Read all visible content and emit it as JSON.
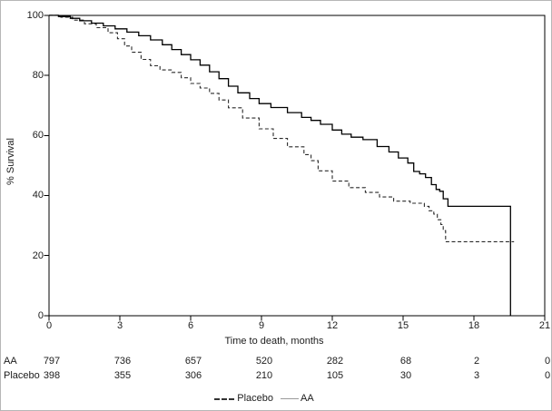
{
  "axes": {
    "x_title": "Time to death, months",
    "y_title": "% Survival"
  },
  "legend": {
    "items": [
      {
        "label": "Placebo",
        "marker": "dashed-line"
      },
      {
        "label": "AA",
        "marker": "solid-line"
      }
    ]
  },
  "colors": {
    "curve_aa": "#000000",
    "curve_placebo": "#2a2a2a",
    "frame": "#000000",
    "text": "#1c1c1c",
    "legend_aa_marker": "#9a9a9a"
  },
  "chart_data": {
    "type": "line",
    "subtype": "kaplan-meier-step",
    "title": "",
    "xlabel": "Time to death, months",
    "ylabel": "% Survival",
    "xlim": [
      0,
      21
    ],
    "ylim": [
      0,
      100
    ],
    "x_ticks": [
      0,
      3,
      6,
      9,
      12,
      15,
      18,
      21
    ],
    "y_ticks": [
      0,
      20,
      40,
      60,
      80,
      100
    ],
    "grid": false,
    "legend_position": "bottom-center",
    "series": [
      {
        "name": "Placebo",
        "style": "dashed",
        "points": [
          [
            0,
            100
          ],
          [
            0.5,
            99.4
          ],
          [
            1,
            98.4
          ],
          [
            1.5,
            97.2
          ],
          [
            2,
            95.9
          ],
          [
            2.5,
            94.2
          ],
          [
            2.9,
            92.2
          ],
          [
            3.2,
            89.8
          ],
          [
            3.5,
            87.7
          ],
          [
            3.9,
            85.3
          ],
          [
            4.3,
            83.2
          ],
          [
            4.7,
            81.8
          ],
          [
            5.2,
            81
          ],
          [
            5.6,
            79.2
          ],
          [
            6,
            77.3
          ],
          [
            6.4,
            75.8
          ],
          [
            6.8,
            74
          ],
          [
            7.2,
            71.8
          ],
          [
            7.6,
            69.2
          ],
          [
            8.2,
            65.8
          ],
          [
            8.9,
            62.2
          ],
          [
            9.5,
            59
          ],
          [
            10.1,
            56.2
          ],
          [
            10.8,
            53.6
          ],
          [
            11.1,
            51.6
          ],
          [
            11.4,
            48.2
          ],
          [
            12,
            44.8
          ],
          [
            12.7,
            42.6
          ],
          [
            13.4,
            41
          ],
          [
            14,
            39.5
          ],
          [
            14.6,
            38.1
          ],
          [
            15.3,
            37.4
          ],
          [
            15.9,
            36.4
          ],
          [
            16.1,
            34.9
          ],
          [
            16.3,
            33.8
          ],
          [
            16.45,
            31.9
          ],
          [
            16.6,
            30.3
          ],
          [
            16.7,
            28.3
          ],
          [
            16.8,
            24.6
          ],
          [
            19.7,
            24.6
          ]
        ]
      },
      {
        "name": "AA",
        "style": "solid",
        "points": [
          [
            0,
            100
          ],
          [
            0.4,
            99.6
          ],
          [
            0.9,
            99
          ],
          [
            1.3,
            98.2
          ],
          [
            1.8,
            97.4
          ],
          [
            2.3,
            96.5
          ],
          [
            2.8,
            95.5
          ],
          [
            3.3,
            94.4
          ],
          [
            3.8,
            93.2
          ],
          [
            4.3,
            91.8
          ],
          [
            4.8,
            90.2
          ],
          [
            5.2,
            88.6
          ],
          [
            5.6,
            86.9
          ],
          [
            6,
            85.2
          ],
          [
            6.4,
            83.4
          ],
          [
            6.8,
            81.2
          ],
          [
            7.2,
            78.9
          ],
          [
            7.6,
            76.4
          ],
          [
            8,
            74.2
          ],
          [
            8.5,
            72.3
          ],
          [
            8.9,
            70.6
          ],
          [
            9.4,
            69.3
          ],
          [
            10.1,
            67.6
          ],
          [
            10.7,
            66
          ],
          [
            11.1,
            65
          ],
          [
            11.5,
            63.7
          ],
          [
            12,
            61.8
          ],
          [
            12.4,
            60.4
          ],
          [
            12.8,
            59.4
          ],
          [
            13.3,
            58.6
          ],
          [
            13.9,
            56.3
          ],
          [
            14.4,
            54.5
          ],
          [
            14.8,
            52.5
          ],
          [
            15.2,
            50.8
          ],
          [
            15.45,
            48
          ],
          [
            15.7,
            47.2
          ],
          [
            15.95,
            46
          ],
          [
            16.2,
            43.6
          ],
          [
            16.4,
            42
          ],
          [
            16.55,
            41.4
          ],
          [
            16.7,
            38.9
          ],
          [
            16.9,
            36.4
          ],
          [
            19.55,
            36.4
          ],
          [
            19.55,
            0
          ]
        ]
      }
    ],
    "at_risk": {
      "rows": [
        {
          "label": "AA",
          "values": [
            797,
            736,
            657,
            520,
            282,
            68,
            2,
            0
          ]
        },
        {
          "label": "Placebo",
          "values": [
            398,
            355,
            306,
            210,
            105,
            30,
            3,
            0
          ]
        }
      ]
    }
  }
}
